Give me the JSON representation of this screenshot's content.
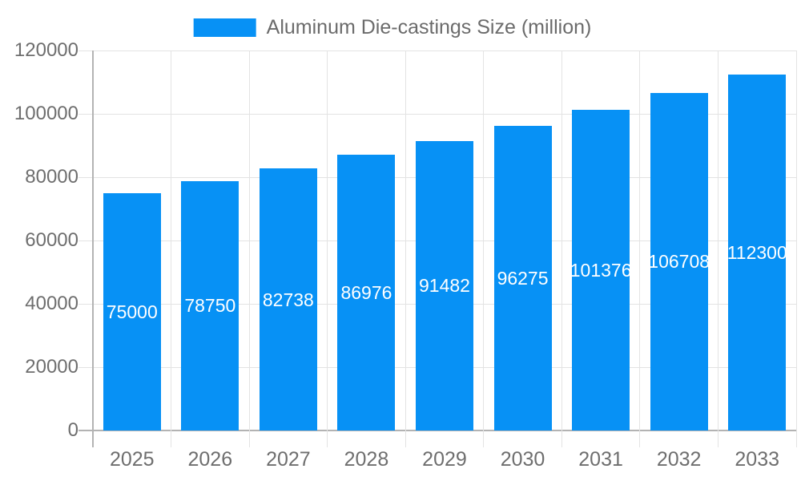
{
  "legend": {
    "label": "Aluminum Die-castings Size (million)"
  },
  "chart_data": {
    "type": "bar",
    "title": "Aluminum Die-castings Size (million)",
    "series_name": "Aluminum Die-castings Size (million)",
    "categories": [
      "2025",
      "2026",
      "2027",
      "2028",
      "2029",
      "2030",
      "2031",
      "2032",
      "2033"
    ],
    "values": [
      75000,
      78750,
      82738,
      86976,
      91482,
      96275,
      101376,
      106708,
      112300
    ],
    "value_labels": [
      "75000",
      "78750",
      "82738",
      "86976",
      "91482",
      "96275",
      "101376",
      "106708",
      "112300"
    ],
    "xlabel": "",
    "ylabel": "",
    "ylim": [
      0,
      120000
    ],
    "ytick_step": 20000,
    "yticks": [
      "0",
      "20000",
      "40000",
      "60000",
      "80000",
      "100000",
      "120000"
    ],
    "grid": true,
    "legend_position": "top-center",
    "bar_color": "#0791f5",
    "value_label_color": "#ffffff",
    "axis_label_color": "#6e6e6e",
    "gridline_color": "#e3e3e3",
    "axis_line_color": "#b3b3b3",
    "background_color": "#ffffff"
  }
}
